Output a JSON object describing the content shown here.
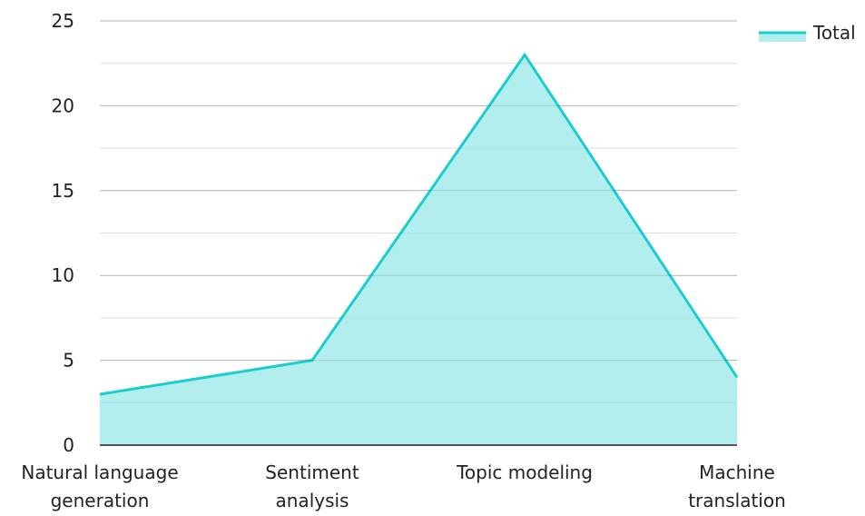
{
  "chart_data": {
    "type": "area",
    "title": "",
    "xlabel": "",
    "ylabel": "",
    "categories": [
      [
        "Natural language",
        "generation"
      ],
      [
        "Sentiment",
        "analysis"
      ],
      [
        "Topic modeling"
      ],
      [
        "Machine",
        "translation"
      ]
    ],
    "series": [
      {
        "name": "Total",
        "values": [
          3,
          5,
          23,
          4
        ],
        "line_color": "#1ccdcd",
        "fill_color": "#b2eeee"
      }
    ],
    "ylim": [
      0,
      25
    ],
    "yticks": [
      0,
      5,
      10,
      15,
      20,
      25
    ],
    "minor_grid_step": 2.5,
    "grid": true,
    "legend_position": "top-right"
  }
}
